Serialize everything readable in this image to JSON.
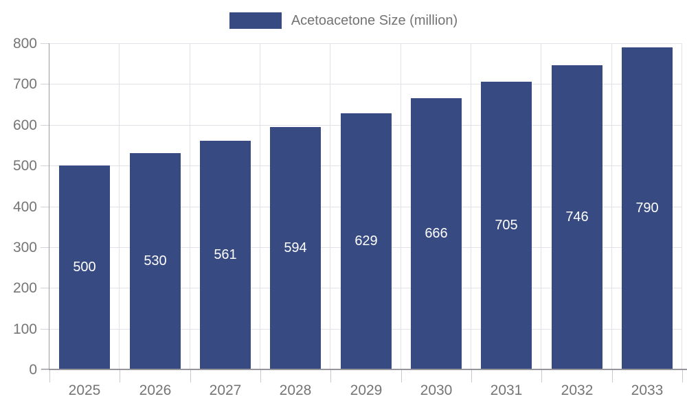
{
  "chart_data": {
    "type": "bar",
    "title": "Acetoacetone Size (million)",
    "legend": {
      "label": "Acetoacetone Size (million)",
      "position": "top"
    },
    "categories": [
      "2025",
      "2026",
      "2027",
      "2028",
      "2029",
      "2030",
      "2031",
      "2032",
      "2033"
    ],
    "series": [
      {
        "name": "Acetoacetone Size (million)",
        "values": [
          500,
          530,
          561,
          594,
          629,
          666,
          705,
          746,
          790
        ]
      }
    ],
    "xlabel": "",
    "ylabel": "",
    "ylim": [
      0,
      800
    ],
    "y_ticks": [
      0,
      100,
      200,
      300,
      400,
      500,
      600,
      700,
      800
    ],
    "grid": true,
    "colors": {
      "bar": "#374a82",
      "value_label": "#ffffff",
      "axis_text": "#757575",
      "legend_text": "#737373",
      "gridline": "#e1e1e7",
      "axis_line": "#95959b"
    }
  }
}
